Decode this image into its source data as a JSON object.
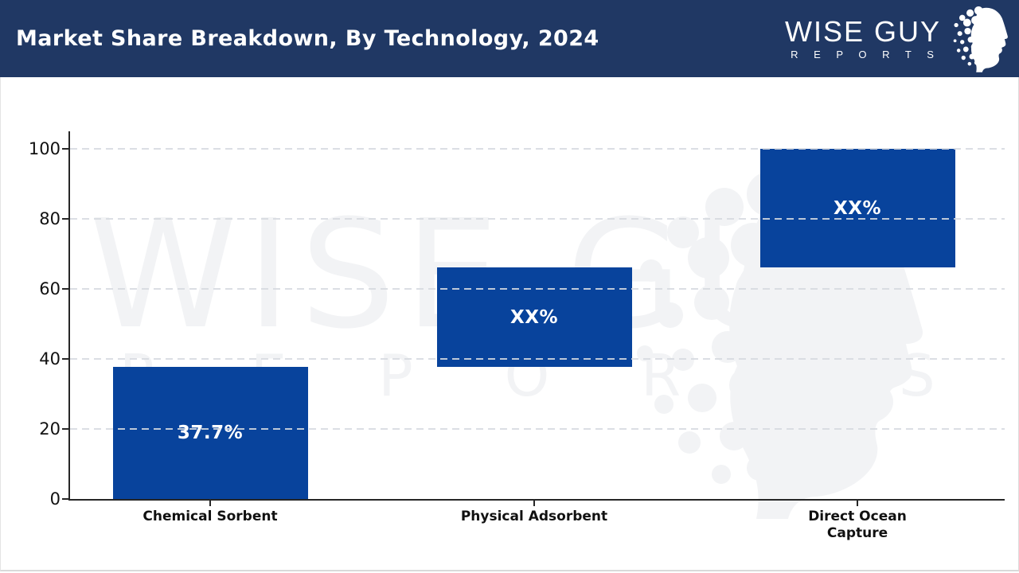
{
  "header": {
    "title": "Market Share Breakdown, By Technology, 2024",
    "logo": {
      "name_top": "WISE GUY",
      "name_bottom": "R E P O R T S"
    }
  },
  "watermark": {
    "text_top": "WISE GUY",
    "text_bottom": "R E P O R T S"
  },
  "chart_data": {
    "type": "bar",
    "subtype": "waterfall-floating-segments",
    "title": "Market Share Breakdown, By Technology, 2024",
    "categories": [
      "Chemical Sorbent",
      "Physical Adsorbent",
      "Direct Ocean Capture"
    ],
    "category_lines": [
      [
        "Chemical Sorbent"
      ],
      [
        "Physical Adsorbent"
      ],
      [
        "Direct Ocean",
        "Capture"
      ]
    ],
    "segments": [
      {
        "category": "Chemical Sorbent",
        "start": 0,
        "end": 37.7,
        "label": "37.7%"
      },
      {
        "category": "Physical Adsorbent",
        "start": 37.7,
        "end": 66.1,
        "label": "XX%"
      },
      {
        "category": "Direct Ocean Capture",
        "start": 66.1,
        "end": 100,
        "label": "XX%"
      }
    ],
    "yticks": [
      0,
      20,
      40,
      60,
      80,
      100
    ],
    "ylim": [
      0,
      100
    ],
    "xlabel": "",
    "ylabel": "",
    "legend": "none",
    "grid": {
      "horizontal": true,
      "style": "dashed",
      "over_bars": true
    },
    "colors": {
      "bar": "#08439c",
      "header_bg": "#203864",
      "grid": "#d9dde2",
      "axis": "#262626",
      "bar_label_text": "#ffffff",
      "tick_text": "#111111"
    }
  }
}
